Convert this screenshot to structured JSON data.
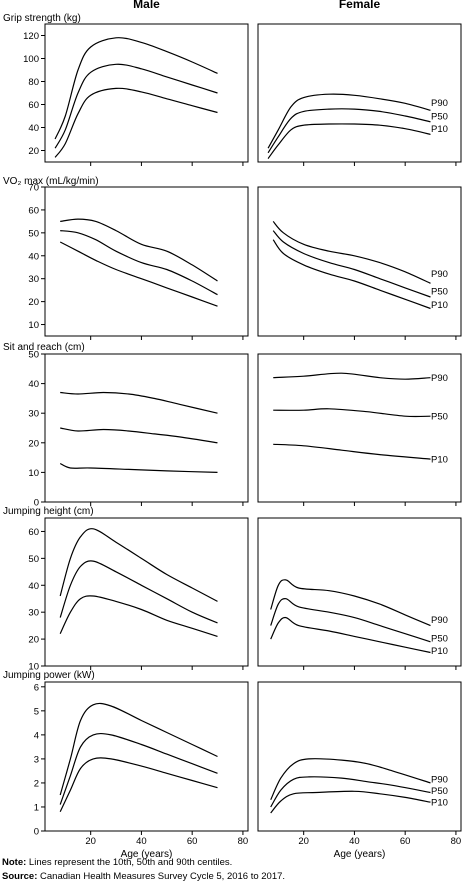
{
  "columns": [
    "Male",
    "Female"
  ],
  "xlabel": "Age (years)",
  "x_ticks": [
    20,
    40,
    60,
    80
  ],
  "percentile_labels": [
    "P90",
    "P50",
    "P10"
  ],
  "note": {
    "label": "Note:",
    "text": "Lines represent the 10th, 50th and 90th centiles."
  },
  "source": {
    "label": "Source:",
    "text": "Canadian Health Measures Survey Cycle 5, 2016 to 2017."
  },
  "chart_data": [
    {
      "type": "line",
      "title": "Grip strength (kg)",
      "ylim": [
        10,
        130
      ],
      "y_ticks": [
        20,
        40,
        60,
        80,
        100,
        120
      ],
      "male": {
        "P90": [
          [
            6,
            30
          ],
          [
            10,
            50
          ],
          [
            15,
            90
          ],
          [
            20,
            110
          ],
          [
            30,
            118
          ],
          [
            40,
            114
          ],
          [
            50,
            106
          ],
          [
            60,
            97
          ],
          [
            70,
            87
          ]
        ],
        "P50": [
          [
            6,
            22
          ],
          [
            10,
            38
          ],
          [
            15,
            70
          ],
          [
            20,
            88
          ],
          [
            30,
            95
          ],
          [
            40,
            91
          ],
          [
            50,
            84
          ],
          [
            60,
            77
          ],
          [
            70,
            70
          ]
        ],
        "P10": [
          [
            6,
            14
          ],
          [
            10,
            26
          ],
          [
            15,
            52
          ],
          [
            20,
            68
          ],
          [
            30,
            74
          ],
          [
            40,
            71
          ],
          [
            50,
            65
          ],
          [
            60,
            59
          ],
          [
            70,
            53
          ]
        ]
      },
      "female": {
        "P90": [
          [
            6,
            22
          ],
          [
            10,
            38
          ],
          [
            15,
            58
          ],
          [
            20,
            66
          ],
          [
            30,
            69
          ],
          [
            40,
            68
          ],
          [
            50,
            65
          ],
          [
            60,
            61
          ],
          [
            70,
            55
          ]
        ],
        "P50": [
          [
            6,
            18
          ],
          [
            10,
            32
          ],
          [
            15,
            48
          ],
          [
            20,
            54
          ],
          [
            30,
            56
          ],
          [
            40,
            56
          ],
          [
            50,
            54
          ],
          [
            60,
            50
          ],
          [
            70,
            45
          ]
        ],
        "P10": [
          [
            6,
            13
          ],
          [
            10,
            25
          ],
          [
            15,
            38
          ],
          [
            20,
            42
          ],
          [
            30,
            43
          ],
          [
            40,
            43
          ],
          [
            50,
            42
          ],
          [
            60,
            39
          ],
          [
            70,
            34
          ]
        ]
      }
    },
    {
      "type": "line",
      "title": "VO₂ max (mL/kg/min)",
      "ylim": [
        5,
        70
      ],
      "y_ticks": [
        10,
        20,
        30,
        40,
        50,
        60,
        70
      ],
      "male": {
        "P90": [
          [
            8,
            55
          ],
          [
            15,
            56
          ],
          [
            22,
            55
          ],
          [
            30,
            51
          ],
          [
            40,
            45
          ],
          [
            50,
            42
          ],
          [
            60,
            36
          ],
          [
            70,
            29
          ]
        ],
        "P50": [
          [
            8,
            51
          ],
          [
            15,
            50
          ],
          [
            22,
            47
          ],
          [
            30,
            42
          ],
          [
            40,
            37
          ],
          [
            50,
            34
          ],
          [
            60,
            29
          ],
          [
            70,
            23
          ]
        ],
        "P10": [
          [
            8,
            46
          ],
          [
            15,
            42
          ],
          [
            22,
            38
          ],
          [
            30,
            34
          ],
          [
            40,
            30
          ],
          [
            50,
            26
          ],
          [
            60,
            22
          ],
          [
            70,
            18
          ]
        ]
      },
      "female": {
        "P90": [
          [
            8,
            55
          ],
          [
            12,
            50
          ],
          [
            20,
            45
          ],
          [
            30,
            42
          ],
          [
            40,
            40
          ],
          [
            50,
            37
          ],
          [
            60,
            33
          ],
          [
            70,
            28
          ]
        ],
        "P50": [
          [
            8,
            51
          ],
          [
            12,
            46
          ],
          [
            20,
            41
          ],
          [
            30,
            37
          ],
          [
            40,
            34
          ],
          [
            50,
            30
          ],
          [
            60,
            26
          ],
          [
            70,
            22
          ]
        ],
        "P10": [
          [
            8,
            47
          ],
          [
            12,
            41
          ],
          [
            20,
            36
          ],
          [
            30,
            32
          ],
          [
            40,
            29
          ],
          [
            50,
            25
          ],
          [
            60,
            21
          ],
          [
            70,
            17
          ]
        ]
      }
    },
    {
      "type": "line",
      "title": "Sit and reach (cm)",
      "ylim": [
        0,
        50
      ],
      "y_ticks": [
        0,
        10,
        20,
        30,
        40,
        50
      ],
      "male": {
        "P90": [
          [
            8,
            37
          ],
          [
            15,
            36.5
          ],
          [
            25,
            37
          ],
          [
            35,
            36.5
          ],
          [
            45,
            35
          ],
          [
            55,
            33
          ],
          [
            70,
            30
          ]
        ],
        "P50": [
          [
            8,
            25
          ],
          [
            15,
            24
          ],
          [
            25,
            24.5
          ],
          [
            35,
            24
          ],
          [
            45,
            23
          ],
          [
            55,
            22
          ],
          [
            70,
            20
          ]
        ],
        "P10": [
          [
            8,
            13
          ],
          [
            12,
            11.5
          ],
          [
            20,
            11.5
          ],
          [
            35,
            11
          ],
          [
            50,
            10.5
          ],
          [
            70,
            10
          ]
        ]
      },
      "female": {
        "P90": [
          [
            8,
            42
          ],
          [
            20,
            42.5
          ],
          [
            35,
            43.5
          ],
          [
            50,
            42
          ],
          [
            60,
            41.5
          ],
          [
            70,
            42
          ]
        ],
        "P50": [
          [
            8,
            31
          ],
          [
            20,
            31
          ],
          [
            30,
            31.5
          ],
          [
            45,
            30.5
          ],
          [
            60,
            29
          ],
          [
            70,
            29
          ]
        ],
        "P10": [
          [
            8,
            19.5
          ],
          [
            20,
            19
          ],
          [
            35,
            17.5
          ],
          [
            50,
            16
          ],
          [
            70,
            14.5
          ]
        ]
      }
    },
    {
      "type": "line",
      "title": "Jumping height (cm)",
      "ylim": [
        10,
        65
      ],
      "y_ticks": [
        10,
        20,
        30,
        40,
        50,
        60
      ],
      "male": {
        "P90": [
          [
            8,
            36
          ],
          [
            12,
            50
          ],
          [
            16,
            58
          ],
          [
            21,
            61
          ],
          [
            30,
            56
          ],
          [
            40,
            50
          ],
          [
            50,
            44
          ],
          [
            60,
            39
          ],
          [
            70,
            34
          ]
        ],
        "P50": [
          [
            8,
            28
          ],
          [
            12,
            40
          ],
          [
            16,
            47
          ],
          [
            21,
            49
          ],
          [
            30,
            45
          ],
          [
            40,
            40
          ],
          [
            50,
            35
          ],
          [
            60,
            30
          ],
          [
            70,
            26
          ]
        ],
        "P10": [
          [
            8,
            22
          ],
          [
            12,
            30
          ],
          [
            16,
            35
          ],
          [
            21,
            36
          ],
          [
            30,
            34
          ],
          [
            40,
            31
          ],
          [
            50,
            27
          ],
          [
            60,
            24
          ],
          [
            70,
            21
          ]
        ]
      },
      "female": {
        "P90": [
          [
            7,
            31
          ],
          [
            10,
            40
          ],
          [
            13,
            42
          ],
          [
            18,
            39
          ],
          [
            30,
            38
          ],
          [
            40,
            36
          ],
          [
            50,
            33
          ],
          [
            60,
            29
          ],
          [
            70,
            25
          ]
        ],
        "P50": [
          [
            7,
            25
          ],
          [
            10,
            33
          ],
          [
            13,
            35
          ],
          [
            18,
            32
          ],
          [
            30,
            30
          ],
          [
            40,
            28
          ],
          [
            50,
            25
          ],
          [
            60,
            22
          ],
          [
            70,
            19
          ]
        ],
        "P10": [
          [
            7,
            20
          ],
          [
            10,
            26
          ],
          [
            13,
            28
          ],
          [
            18,
            25
          ],
          [
            30,
            23
          ],
          [
            40,
            21
          ],
          [
            50,
            19
          ],
          [
            60,
            17
          ],
          [
            70,
            15
          ]
        ]
      }
    },
    {
      "type": "line",
      "title": "Jumping power (kW)",
      "ylim": [
        0,
        6.2
      ],
      "y_ticks": [
        0,
        1,
        2,
        3,
        4,
        5,
        6
      ],
      "male": {
        "P90": [
          [
            8,
            1.5
          ],
          [
            12,
            3
          ],
          [
            16,
            4.6
          ],
          [
            21,
            5.25
          ],
          [
            28,
            5.2
          ],
          [
            40,
            4.6
          ],
          [
            50,
            4.1
          ],
          [
            60,
            3.6
          ],
          [
            70,
            3.1
          ]
        ],
        "P50": [
          [
            8,
            1.1
          ],
          [
            12,
            2.3
          ],
          [
            16,
            3.5
          ],
          [
            21,
            4.0
          ],
          [
            28,
            4.0
          ],
          [
            40,
            3.6
          ],
          [
            50,
            3.2
          ],
          [
            60,
            2.8
          ],
          [
            70,
            2.4
          ]
        ],
        "P10": [
          [
            8,
            0.8
          ],
          [
            12,
            1.7
          ],
          [
            16,
            2.6
          ],
          [
            21,
            3.0
          ],
          [
            28,
            3.0
          ],
          [
            40,
            2.7
          ],
          [
            50,
            2.4
          ],
          [
            60,
            2.1
          ],
          [
            70,
            1.8
          ]
        ]
      },
      "female": {
        "P90": [
          [
            7,
            1.3
          ],
          [
            11,
            2.2
          ],
          [
            16,
            2.8
          ],
          [
            22,
            3.0
          ],
          [
            35,
            2.95
          ],
          [
            45,
            2.8
          ],
          [
            55,
            2.5
          ],
          [
            70,
            2.0
          ]
        ],
        "P50": [
          [
            7,
            1.0
          ],
          [
            11,
            1.7
          ],
          [
            16,
            2.15
          ],
          [
            22,
            2.25
          ],
          [
            35,
            2.2
          ],
          [
            45,
            2.05
          ],
          [
            55,
            1.9
          ],
          [
            70,
            1.6
          ]
        ],
        "P10": [
          [
            7,
            0.75
          ],
          [
            11,
            1.25
          ],
          [
            16,
            1.55
          ],
          [
            25,
            1.6
          ],
          [
            40,
            1.65
          ],
          [
            50,
            1.55
          ],
          [
            60,
            1.4
          ],
          [
            70,
            1.2
          ]
        ]
      }
    }
  ]
}
